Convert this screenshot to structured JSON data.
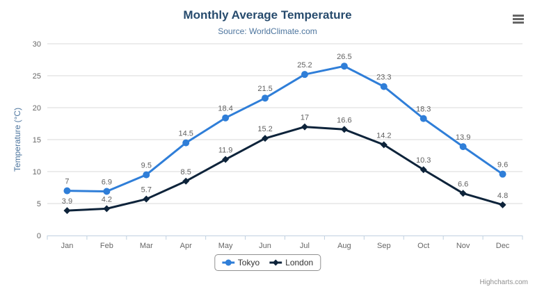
{
  "chart_data": {
    "type": "line",
    "title": "Monthly Average Temperature",
    "subtitle": "Source: WorldClimate.com",
    "categories": [
      "Jan",
      "Feb",
      "Mar",
      "Apr",
      "May",
      "Jun",
      "Jul",
      "Aug",
      "Sep",
      "Oct",
      "Nov",
      "Dec"
    ],
    "series": [
      {
        "name": "Tokyo",
        "color": "#2f7ed8",
        "marker": "circle",
        "values": [
          7,
          6.9,
          9.5,
          14.5,
          18.4,
          21.5,
          25.2,
          26.5,
          23.3,
          18.3,
          13.9,
          9.6
        ]
      },
      {
        "name": "London",
        "color": "#0d233a",
        "marker": "diamond",
        "values": [
          3.9,
          4.2,
          5.7,
          8.5,
          11.9,
          15.2,
          17,
          16.6,
          14.2,
          10.3,
          6.6,
          4.8
        ]
      }
    ],
    "xlabel": "",
    "ylabel": "Temperature (°C)",
    "ylim": [
      0,
      30
    ],
    "ytick_step": 5,
    "yticks": [
      0,
      5,
      10,
      15,
      20,
      25,
      30
    ],
    "grid": true,
    "legend_position": "bottom",
    "data_labels": true
  },
  "styles": {
    "grid_color": "#d8d8d8",
    "axis_line_color": "#c0d0e0",
    "axis_label_color": "#666666",
    "data_label_color": "#606060",
    "title_color": "#274b6d",
    "subtitle_color": "#4d759e",
    "legend_text_color": "#333333",
    "credits_color": "#909090",
    "menu_icon_color": "#666666"
  },
  "menu": {
    "icon": "hamburger-menu-icon"
  },
  "credits": {
    "label": "Highcharts.com"
  }
}
